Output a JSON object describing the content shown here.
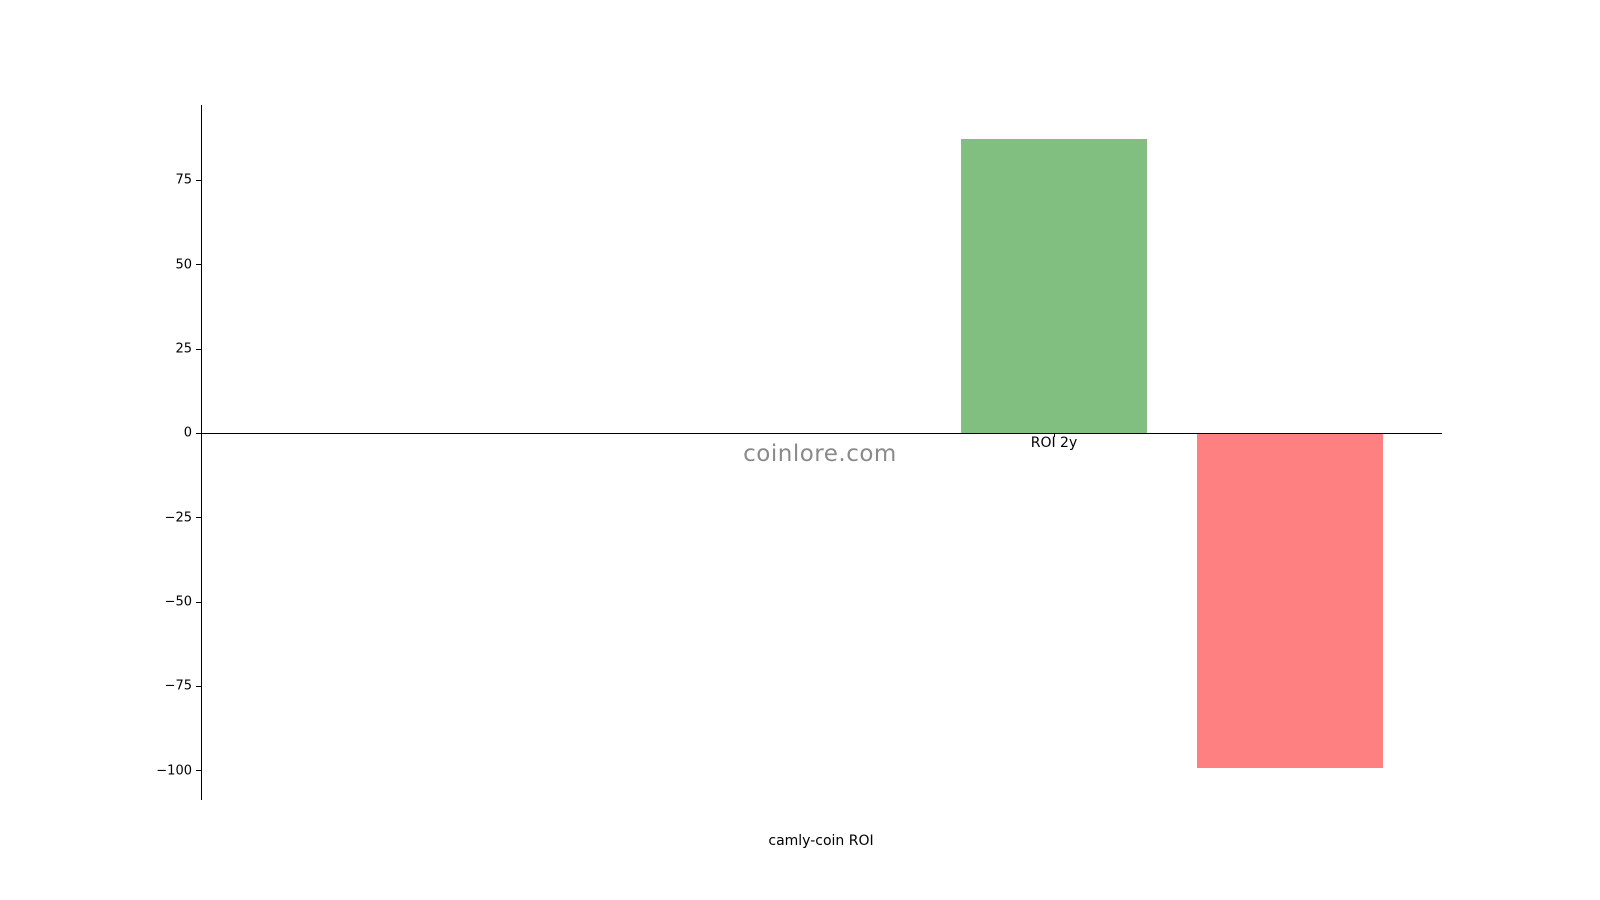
{
  "chart_data": {
    "type": "bar",
    "title": "",
    "xlabel": "camly-coin ROI",
    "ylabel": "",
    "categories": [
      "ROI 2y",
      ""
    ],
    "values": [
      87,
      -99
    ],
    "bar_colors": [
      "#80bf80",
      "#ff8080"
    ],
    "yticks": [
      75,
      50,
      25,
      0,
      -25,
      -50,
      -75,
      -100
    ],
    "ylim": [
      -108.8,
      97.2
    ],
    "grid": false,
    "legend_position": "none",
    "axis_color": "#000000",
    "tick_label_color": "#000000"
  },
  "watermark": {
    "text": "coinlore.com",
    "color": "#8a8a8a"
  }
}
